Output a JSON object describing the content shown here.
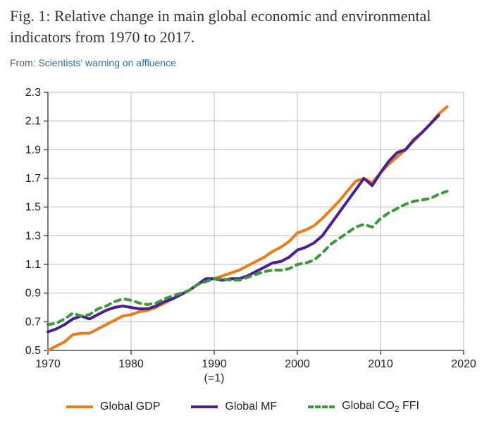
{
  "title": "Fig. 1: Relative change in main global economic and environmental indicators from 1970 to 2017.",
  "from_prefix": "From: ",
  "from_link": "Scientists' warning on affluence",
  "chart": {
    "type": "line",
    "background_color": "#ffffff",
    "grid_color": "#b8b8b8",
    "axis_color": "#4a4a4a",
    "axis_label_color": "#222222",
    "axis_fontsize": 16,
    "line_width": 4,
    "xlim": [
      1970,
      2020
    ],
    "ylim": [
      0.5,
      2.3
    ],
    "xticks": [
      1970,
      1980,
      1990,
      2000,
      2010,
      2020
    ],
    "yticks": [
      0.5,
      0.7,
      0.9,
      1.1,
      1.3,
      1.5,
      1.7,
      1.9,
      2.1,
      2.3
    ],
    "x_sub_label_at": 1990,
    "x_sub_label": "(=1)",
    "series": [
      {
        "id": "gdp",
        "label_plain": "Global GDP",
        "label_html": "Global GDP",
        "color": "#ec7c1a",
        "dash": "none",
        "points": [
          [
            1970,
            0.5
          ],
          [
            1971,
            0.53
          ],
          [
            1972,
            0.56
          ],
          [
            1973,
            0.61
          ],
          [
            1974,
            0.62
          ],
          [
            1975,
            0.62
          ],
          [
            1976,
            0.65
          ],
          [
            1977,
            0.68
          ],
          [
            1978,
            0.71
          ],
          [
            1979,
            0.74
          ],
          [
            1980,
            0.75
          ],
          [
            1981,
            0.77
          ],
          [
            1982,
            0.78
          ],
          [
            1983,
            0.8
          ],
          [
            1984,
            0.83
          ],
          [
            1985,
            0.86
          ],
          [
            1986,
            0.89
          ],
          [
            1987,
            0.92
          ],
          [
            1988,
            0.96
          ],
          [
            1989,
            0.99
          ],
          [
            1990,
            1.0
          ],
          [
            1991,
            1.02
          ],
          [
            1992,
            1.04
          ],
          [
            1993,
            1.06
          ],
          [
            1994,
            1.09
          ],
          [
            1995,
            1.12
          ],
          [
            1996,
            1.15
          ],
          [
            1997,
            1.19
          ],
          [
            1998,
            1.22
          ],
          [
            1999,
            1.26
          ],
          [
            2000,
            1.32
          ],
          [
            2001,
            1.34
          ],
          [
            2002,
            1.37
          ],
          [
            2003,
            1.42
          ],
          [
            2004,
            1.48
          ],
          [
            2005,
            1.54
          ],
          [
            2006,
            1.61
          ],
          [
            2007,
            1.68
          ],
          [
            2008,
            1.7
          ],
          [
            2009,
            1.67
          ],
          [
            2010,
            1.74
          ],
          [
            2011,
            1.8
          ],
          [
            2012,
            1.85
          ],
          [
            2013,
            1.9
          ],
          [
            2014,
            1.96
          ],
          [
            2015,
            2.02
          ],
          [
            2016,
            2.08
          ],
          [
            2017,
            2.15
          ],
          [
            2018,
            2.2
          ]
        ]
      },
      {
        "id": "mf",
        "label_plain": "Global MF",
        "label_html": "Global MF",
        "color": "#4a1f8f",
        "dash": "none",
        "points": [
          [
            1970,
            0.63
          ],
          [
            1971,
            0.65
          ],
          [
            1972,
            0.68
          ],
          [
            1973,
            0.72
          ],
          [
            1974,
            0.74
          ],
          [
            1975,
            0.72
          ],
          [
            1976,
            0.75
          ],
          [
            1977,
            0.78
          ],
          [
            1978,
            0.8
          ],
          [
            1979,
            0.81
          ],
          [
            1980,
            0.8
          ],
          [
            1981,
            0.79
          ],
          [
            1982,
            0.79
          ],
          [
            1983,
            0.81
          ],
          [
            1984,
            0.84
          ],
          [
            1985,
            0.86
          ],
          [
            1986,
            0.89
          ],
          [
            1987,
            0.92
          ],
          [
            1988,
            0.96
          ],
          [
            1989,
            1.0
          ],
          [
            1990,
            1.0
          ],
          [
            1991,
            0.99
          ],
          [
            1992,
            1.0
          ],
          [
            1993,
            1.0
          ],
          [
            1994,
            1.02
          ],
          [
            1995,
            1.05
          ],
          [
            1996,
            1.08
          ],
          [
            1997,
            1.11
          ],
          [
            1998,
            1.12
          ],
          [
            1999,
            1.15
          ],
          [
            2000,
            1.2
          ],
          [
            2001,
            1.22
          ],
          [
            2002,
            1.25
          ],
          [
            2003,
            1.3
          ],
          [
            2004,
            1.38
          ],
          [
            2005,
            1.46
          ],
          [
            2006,
            1.54
          ],
          [
            2007,
            1.62
          ],
          [
            2008,
            1.7
          ],
          [
            2009,
            1.65
          ],
          [
            2010,
            1.74
          ],
          [
            2011,
            1.82
          ],
          [
            2012,
            1.88
          ],
          [
            2013,
            1.9
          ],
          [
            2014,
            1.97
          ],
          [
            2015,
            2.02
          ],
          [
            2016,
            2.08
          ],
          [
            2017,
            2.14
          ]
        ]
      },
      {
        "id": "co2",
        "label_plain": "Global CO2 FFI",
        "label_html": "Global CO<sub>2</sub> FFI",
        "color": "#3a9a3a",
        "dash": "8,7",
        "points": [
          [
            1970,
            0.68
          ],
          [
            1971,
            0.69
          ],
          [
            1972,
            0.72
          ],
          [
            1973,
            0.76
          ],
          [
            1974,
            0.74
          ],
          [
            1975,
            0.75
          ],
          [
            1976,
            0.79
          ],
          [
            1977,
            0.81
          ],
          [
            1978,
            0.84
          ],
          [
            1979,
            0.86
          ],
          [
            1980,
            0.85
          ],
          [
            1981,
            0.83
          ],
          [
            1982,
            0.82
          ],
          [
            1983,
            0.83
          ],
          [
            1984,
            0.86
          ],
          [
            1985,
            0.88
          ],
          [
            1986,
            0.9
          ],
          [
            1987,
            0.92
          ],
          [
            1988,
            0.96
          ],
          [
            1989,
            0.98
          ],
          [
            1990,
            1.0
          ],
          [
            1991,
            1.0
          ],
          [
            1992,
            0.99
          ],
          [
            1993,
            0.99
          ],
          [
            1994,
            1.01
          ],
          [
            1995,
            1.03
          ],
          [
            1996,
            1.05
          ],
          [
            1997,
            1.06
          ],
          [
            1998,
            1.06
          ],
          [
            1999,
            1.07
          ],
          [
            2000,
            1.1
          ],
          [
            2001,
            1.11
          ],
          [
            2002,
            1.13
          ],
          [
            2003,
            1.18
          ],
          [
            2004,
            1.24
          ],
          [
            2005,
            1.28
          ],
          [
            2006,
            1.32
          ],
          [
            2007,
            1.36
          ],
          [
            2008,
            1.38
          ],
          [
            2009,
            1.36
          ],
          [
            2010,
            1.42
          ],
          [
            2011,
            1.46
          ],
          [
            2012,
            1.49
          ],
          [
            2013,
            1.52
          ],
          [
            2014,
            1.54
          ],
          [
            2015,
            1.55
          ],
          [
            2016,
            1.56
          ],
          [
            2017,
            1.59
          ],
          [
            2018,
            1.61
          ]
        ]
      }
    ],
    "legend": [
      {
        "series": "gdp"
      },
      {
        "series": "mf"
      },
      {
        "series": "co2"
      }
    ]
  }
}
